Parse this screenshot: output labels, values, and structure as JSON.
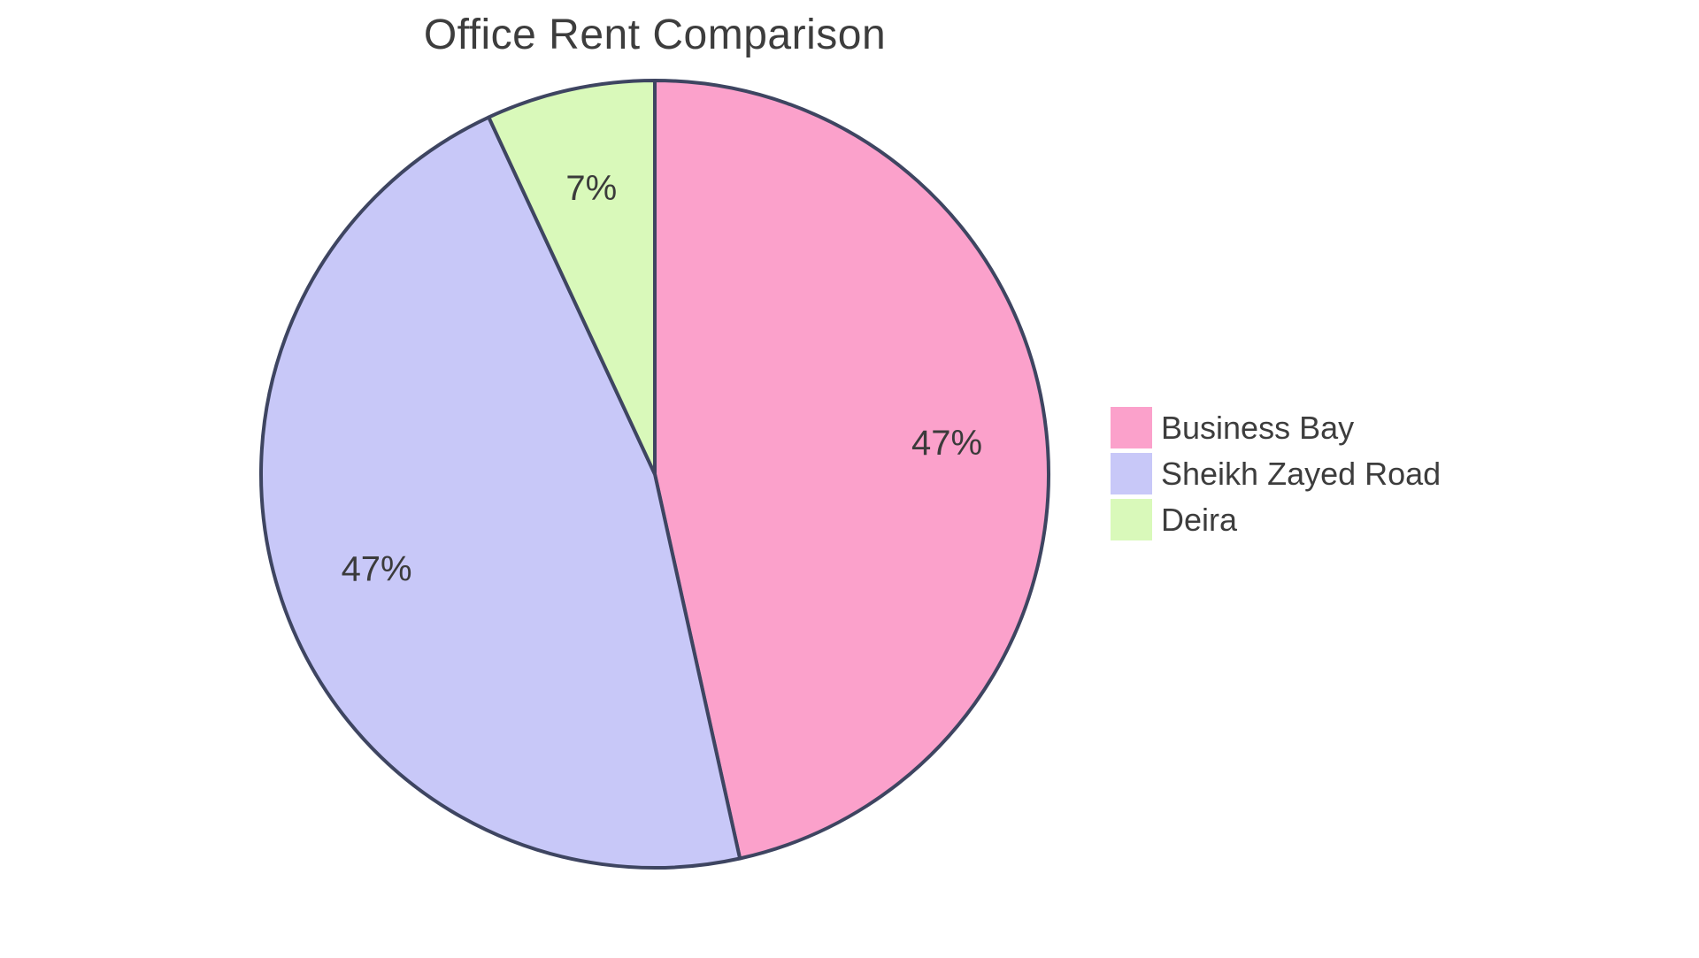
{
  "title": "Office Rent Comparison",
  "chart_data": {
    "type": "pie",
    "title": "Office Rent Comparison",
    "labels": [
      "Business Bay",
      "Sheikh Zayed Road",
      "Deira"
    ],
    "values": [
      47,
      47,
      7
    ],
    "displayed_percents": [
      "47%",
      "47%",
      "7%"
    ],
    "colors": [
      "#FBA1CB",
      "#C8C8F8",
      "#D9F9BA"
    ],
    "slice_border_color": "#3E4561",
    "slice_border_width": 4,
    "start_angle_deg": -90,
    "direction": "clockwise",
    "legend_position": "right",
    "label_color": "#3B3B3B",
    "label_radius_fraction": 0.746,
    "background": "#FFFFFF"
  },
  "legend": {
    "items": [
      {
        "label": "Business Bay",
        "color": "#FBA1CB"
      },
      {
        "label": "Sheikh Zayed Road",
        "color": "#C8C8F8"
      },
      {
        "label": "Deira",
        "color": "#D9F9BA"
      }
    ]
  }
}
